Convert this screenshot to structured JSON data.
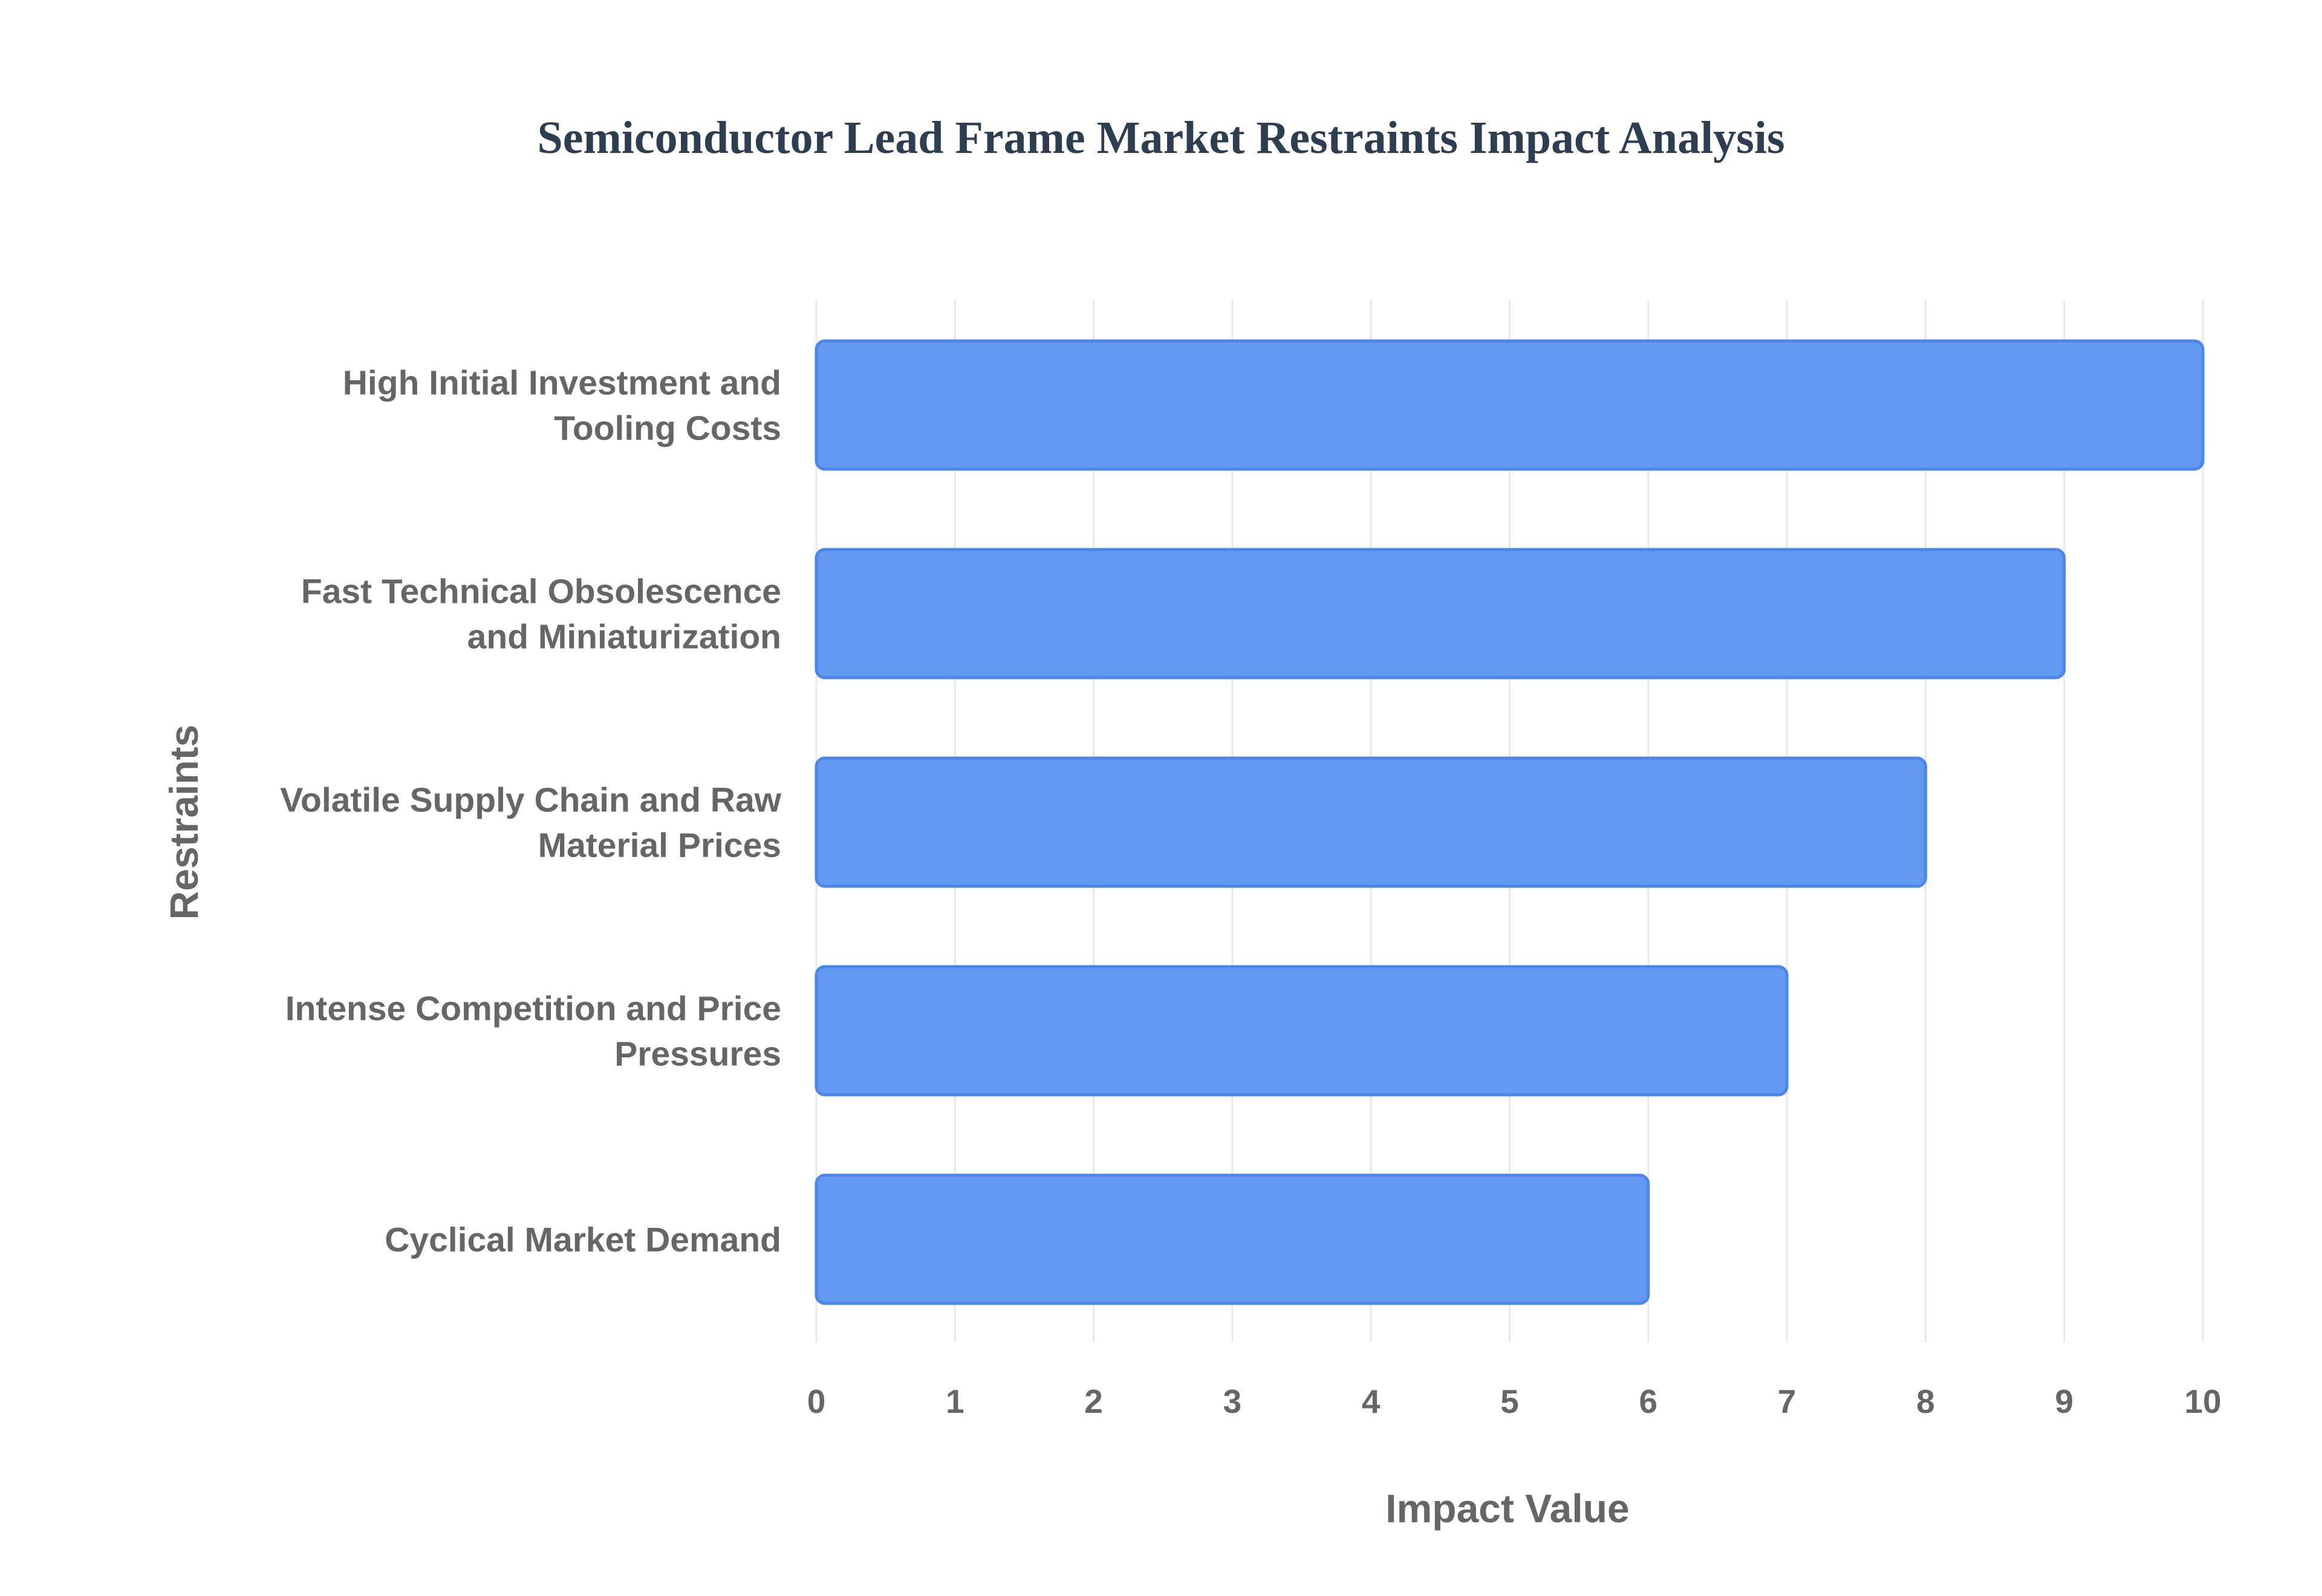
{
  "chart_data": {
    "type": "bar",
    "orientation": "horizontal",
    "title": "Semiconductor Lead Frame Market Restraints Impact Analysis",
    "xlabel": "Impact Value",
    "ylabel": "Restraints",
    "categories": [
      [
        "High Initial Investment and",
        "Tooling Costs"
      ],
      [
        "Fast Technical Obsolescence",
        "and Miniaturization"
      ],
      [
        "Volatile Supply Chain and Raw",
        "Material Prices"
      ],
      [
        "Intense Competition and Price",
        "Pressures"
      ],
      [
        "Cyclical Market Demand"
      ]
    ],
    "values": [
      10,
      9,
      8,
      7,
      6
    ],
    "xlim": [
      0,
      10
    ],
    "xticks": [
      "0",
      "1",
      "2",
      "3",
      "4",
      "5",
      "6",
      "7",
      "8",
      "9",
      "10"
    ],
    "grid": true,
    "legend": "none",
    "colors": {
      "bar_fill": "#6499f2",
      "bar_edge": "#4a86ec",
      "grid": "#e8e8e8",
      "text": "#666666",
      "title": "#2d3e50"
    }
  }
}
